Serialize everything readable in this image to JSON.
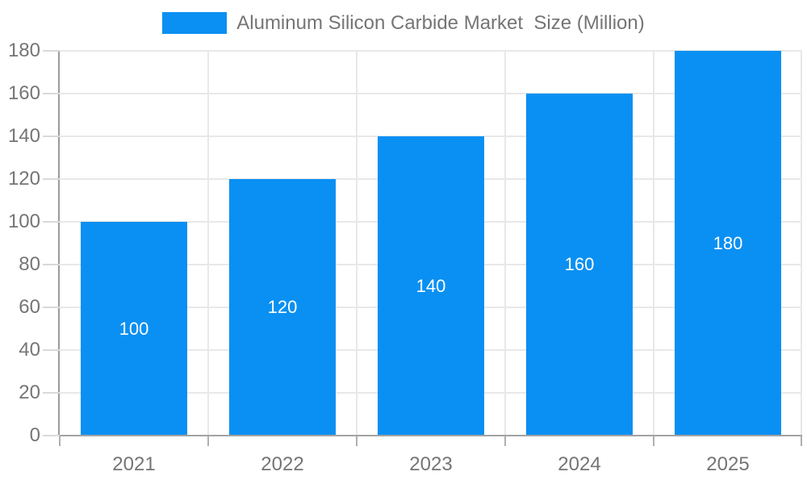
{
  "legend": {
    "label": "Aluminum Silicon Carbide Market  Size (Million)"
  },
  "chart_data": {
    "type": "bar",
    "title": "Aluminum Silicon Carbide Market  Size (Million)",
    "categories": [
      "2021",
      "2022",
      "2023",
      "2024",
      "2025"
    ],
    "values": [
      100,
      120,
      140,
      160,
      180
    ],
    "series": [
      {
        "name": "Aluminum Silicon Carbide Market Size (Million)",
        "values": [
          100,
          120,
          140,
          160,
          180
        ]
      }
    ],
    "data_labels": [
      "100",
      "120",
      "140",
      "160",
      "180"
    ],
    "xlabel": "",
    "ylabel": "",
    "ylim": [
      0,
      180
    ],
    "yticks": [
      0,
      20,
      40,
      60,
      80,
      100,
      120,
      140,
      160,
      180
    ],
    "grid": true,
    "legend_position": "top-center",
    "colors": {
      "bar": "#0a90f2",
      "text": "#757575",
      "axis": "#9a9a9a",
      "gridline": "#e8e8e8",
      "bar_label": "#ffffff"
    }
  }
}
